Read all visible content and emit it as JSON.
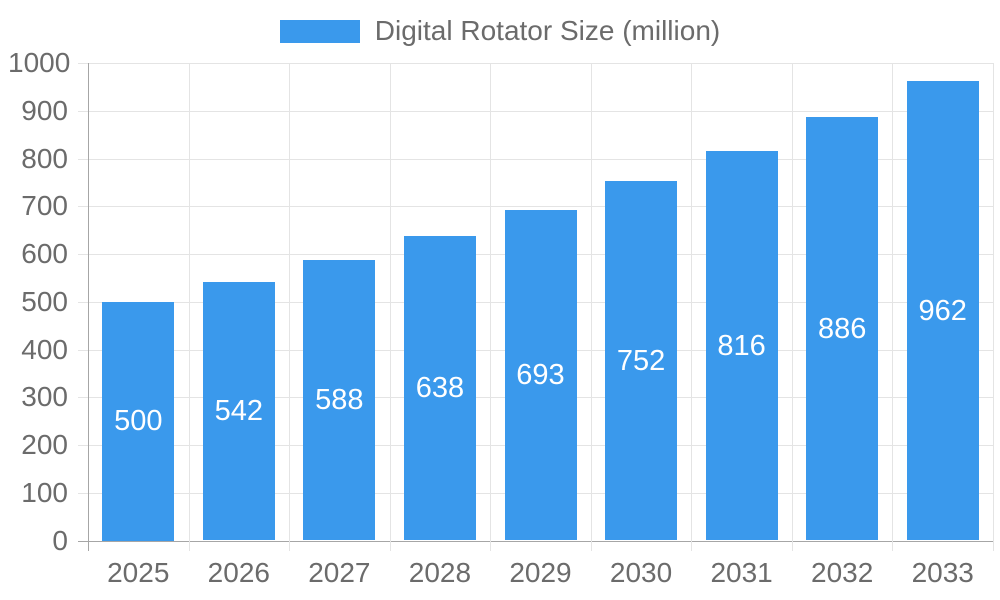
{
  "chart_data": {
    "type": "bar",
    "title": "Digital Rotator Size (million)",
    "categories": [
      "2025",
      "2026",
      "2027",
      "2028",
      "2029",
      "2030",
      "2031",
      "2032",
      "2033"
    ],
    "values": [
      500,
      542,
      588,
      638,
      693,
      752,
      816,
      886,
      962
    ],
    "series": [
      {
        "name": "Digital Rotator Size (million)",
        "values": [
          500,
          542,
          588,
          638,
          693,
          752,
          816,
          886,
          962
        ]
      }
    ],
    "xlabel": "",
    "ylabel": "",
    "ylim": [
      0,
      1000
    ],
    "y_tick_step": 100,
    "y_tick_labels": [
      "0",
      "100",
      "200",
      "300",
      "400",
      "500",
      "600",
      "700",
      "800",
      "900",
      "1000"
    ],
    "grid": "both",
    "legend_position": "top-center",
    "data_labels": "white, centered inside bars",
    "colors": {
      "bar": "#3a99ec",
      "text": "#6b6b6b",
      "grid": "#e4e4e4",
      "axis": "#a6a6a6",
      "data_label": "#ffffff",
      "background": "#ffffff"
    }
  },
  "legend": {
    "label": "Digital Rotator Size (million)"
  }
}
